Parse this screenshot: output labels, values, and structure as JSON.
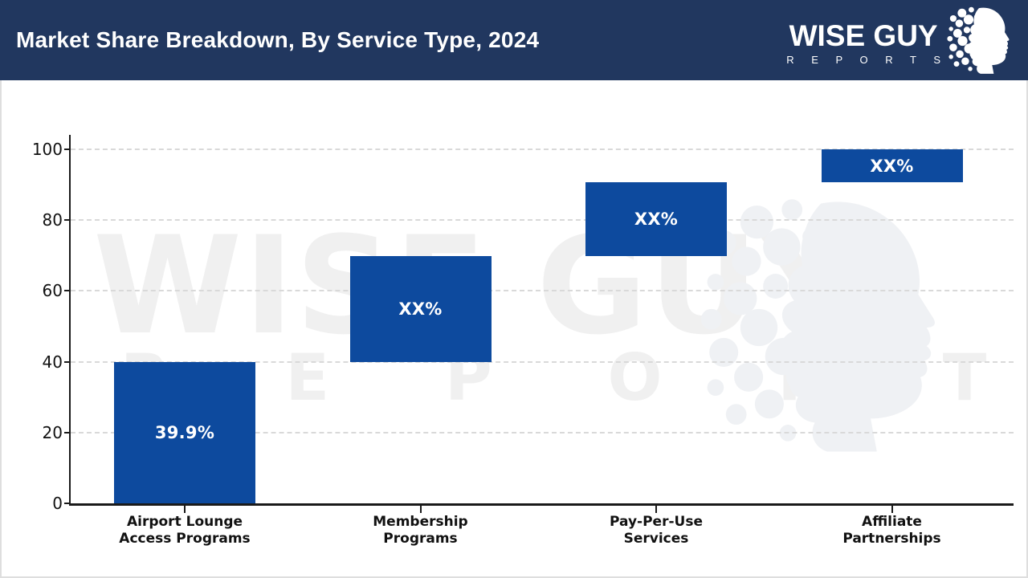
{
  "header": {
    "title": "Market Share Breakdown, By Service Type, 2024",
    "logo": {
      "line1": "WISE GUY",
      "line2": "R E P O R T S"
    }
  },
  "watermark": {
    "line1": "WISE GUY",
    "line2": "R E P O R T S"
  },
  "chart_data": {
    "type": "bar",
    "subtype": "waterfall",
    "title": "Market Share Breakdown, By Service Type, 2024",
    "categories": [
      "Airport Lounge Access Programs",
      "Membership Programs",
      "Pay-Per-Use Services",
      "Affiliate Partnerships"
    ],
    "category_lines": [
      [
        "Airport Lounge",
        "Access Programs"
      ],
      [
        "Membership",
        "Programs"
      ],
      [
        "Pay-Per-Use",
        "Services"
      ],
      [
        "Affiliate",
        "Partnerships"
      ]
    ],
    "bars": [
      {
        "start": 0,
        "end": 39.9,
        "label": "39.9%"
      },
      {
        "start": 39.9,
        "end": 69.9,
        "label": "XX%"
      },
      {
        "start": 69.9,
        "end": 90.6,
        "label": "XX%"
      },
      {
        "start": 90.6,
        "end": 100,
        "label": "XX%"
      }
    ],
    "ylim": [
      0,
      100
    ],
    "yticks": [
      0,
      20,
      40,
      60,
      80,
      100
    ],
    "grid": "horizontal-dashed",
    "legend": "none",
    "xlabel": "",
    "ylabel": ""
  },
  "colors": {
    "header_bg": "#21375f",
    "bar": "#0d4a9e",
    "bar_label": "#ffffff",
    "grid": "#d9d9d9",
    "axis": "#1a1a1a",
    "watermark": "#f0f0f0"
  }
}
